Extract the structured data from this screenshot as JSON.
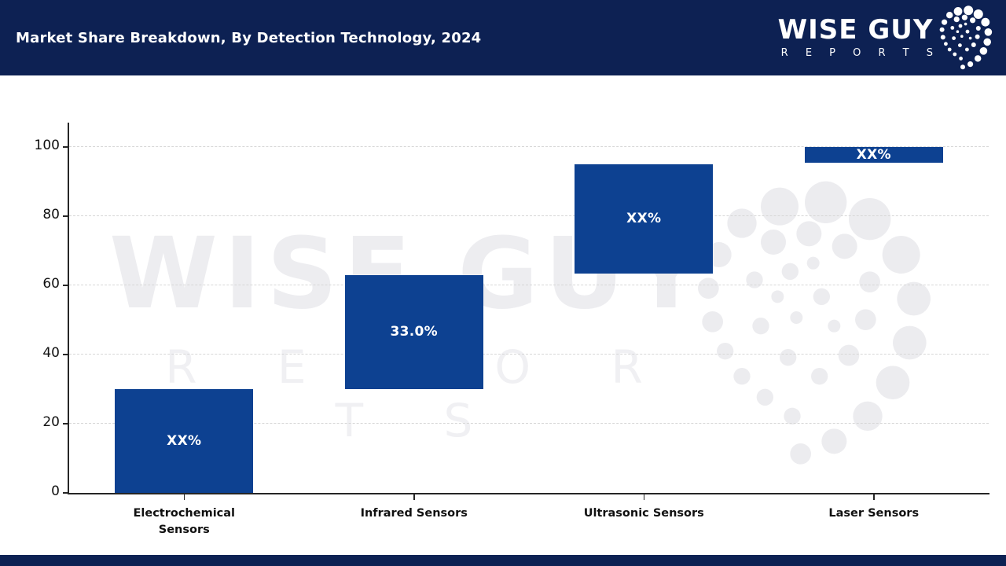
{
  "header": {
    "title": "Market Share Breakdown, By Detection Technology, 2024",
    "bg_color": "#0d2153",
    "logo": {
      "line1": "WISE GUY",
      "line2": "R E P O R T S"
    }
  },
  "watermark": {
    "line1": "WISE GUY",
    "line2": "R E P O R T S"
  },
  "chart_data": {
    "type": "bar",
    "subtype": "floating-waterfall",
    "title": "Market Share Breakdown, By Detection Technology, 2024",
    "categories": [
      "Electrochemical\nSensors",
      "Infrared Sensors",
      "Ultrasonic Sensors",
      "Laser Sensors"
    ],
    "segments": [
      {
        "category": "Electrochemical Sensors",
        "start": 0,
        "end": 30,
        "label": "XX%"
      },
      {
        "category": "Infrared Sensors",
        "start": 30,
        "end": 63,
        "label": "33.0%"
      },
      {
        "category": "Ultrasonic Sensors",
        "start": 63.5,
        "end": 95,
        "label": "XX%"
      },
      {
        "category": "Laser Sensors",
        "start": 95.5,
        "end": 100,
        "label": "XX%"
      }
    ],
    "ylim": [
      0,
      100
    ],
    "yticks": [
      0,
      20,
      40,
      60,
      80,
      100
    ],
    "grid": "horizontal-dashed",
    "legend": "none",
    "bar_color": "#0d4191",
    "bar_label_color": "#ffffff",
    "axis_color": "#262626"
  }
}
